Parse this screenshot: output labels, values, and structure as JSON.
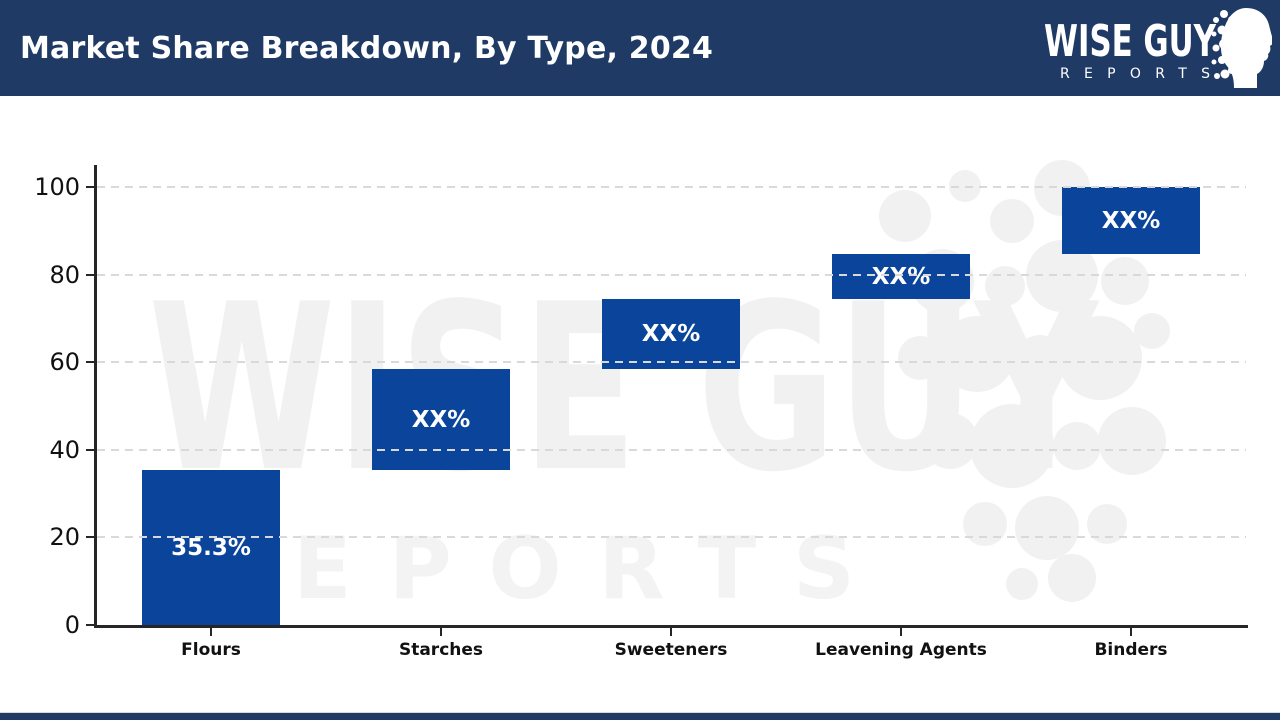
{
  "header": {
    "title": "Market Share Breakdown, By Type, 2024",
    "bg_color": "#203a66",
    "logo": {
      "line1": "WISE GUY",
      "line2": "REPORTS"
    }
  },
  "watermark": {
    "line1": "WISE GUY",
    "line2": "REPORTS",
    "color": "#f1f1f1"
  },
  "footer": {
    "bar_color": "#203a66"
  },
  "chart_data": {
    "type": "bar",
    "subtype": "waterfall",
    "title": "Market Share Breakdown, By Type, 2024",
    "categories": [
      "Flours",
      "Starches",
      "Sweeteners",
      "Leavening Agents",
      "Binders"
    ],
    "segments": [
      {
        "category": "Flours",
        "start": 0,
        "end": 35.3,
        "label": "35.3%"
      },
      {
        "category": "Starches",
        "start": 35.3,
        "end": 58.5,
        "label": "XX%"
      },
      {
        "category": "Sweeteners",
        "start": 58.5,
        "end": 74.4,
        "label": "XX%"
      },
      {
        "category": "Leavening Agents",
        "start": 74.4,
        "end": 84.6,
        "label": "XX%"
      },
      {
        "category": "Binders",
        "start": 84.6,
        "end": 100,
        "label": "XX%"
      }
    ],
    "values_estimated_deltas": [
      35.3,
      23.2,
      15.9,
      10.2,
      15.4
    ],
    "xlabel": "",
    "ylabel": "",
    "ylim": [
      0,
      100
    ],
    "yticks": [
      0,
      20,
      40,
      60,
      80,
      100
    ],
    "grid": "horizontal dashed, drawn above bars",
    "legend": "none",
    "bar_color": "#0b459b",
    "bar_label_color": "#ffffff",
    "axis_color": "#262626",
    "gridline_color": "#d9d9d9"
  }
}
